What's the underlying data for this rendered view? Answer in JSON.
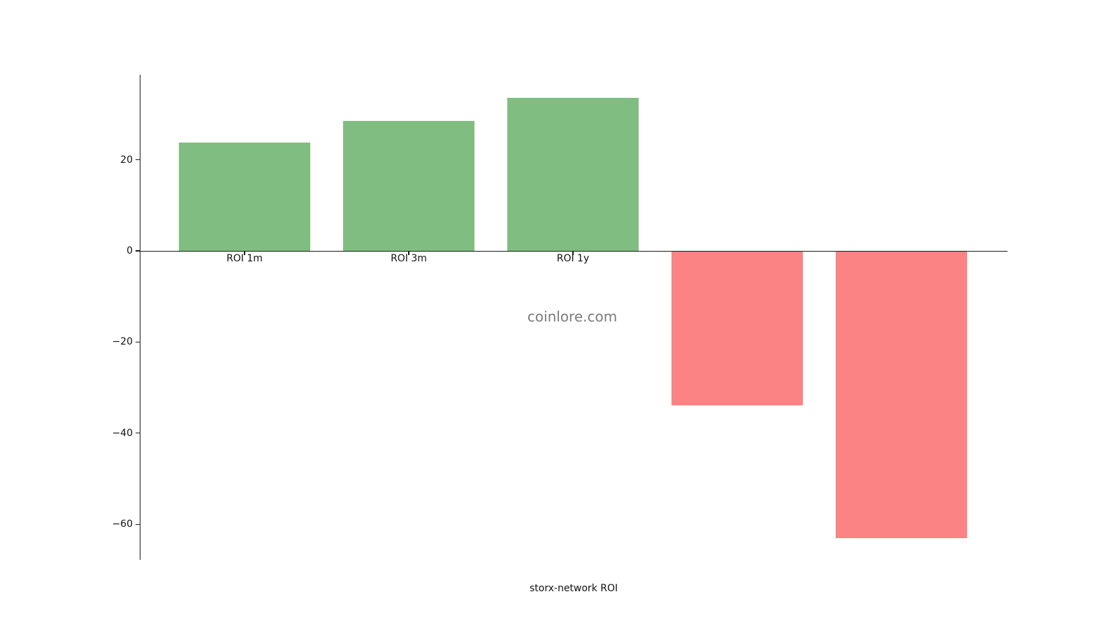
{
  "chart_data": {
    "type": "bar",
    "categories": [
      "ROI 1m",
      "ROI 3m",
      "ROI 1y",
      "",
      ""
    ],
    "values": [
      23.7,
      28.6,
      33.6,
      -33.7,
      -62.9
    ],
    "title": "",
    "xlabel": "storx-network ROI",
    "ylabel": "",
    "yticks": [
      {
        "label": "20",
        "value": 20
      },
      {
        "label": "0",
        "value": 0
      },
      {
        "label": "−20",
        "value": -20
      },
      {
        "label": "−40",
        "value": -40
      },
      {
        "label": "−60",
        "value": -60
      }
    ],
    "ylim": [
      -67.8,
      38.7
    ],
    "xlim": [
      -0.64,
      4.64
    ],
    "grid": false,
    "legend": null,
    "watermark": "coinlore.com",
    "colors": {
      "positive_bar": "#7fbe80",
      "negative_bar": "#fc8383",
      "axis": "#1a1a1a",
      "watermark_text": "#7b7b7b",
      "label_text": "#111111"
    }
  }
}
